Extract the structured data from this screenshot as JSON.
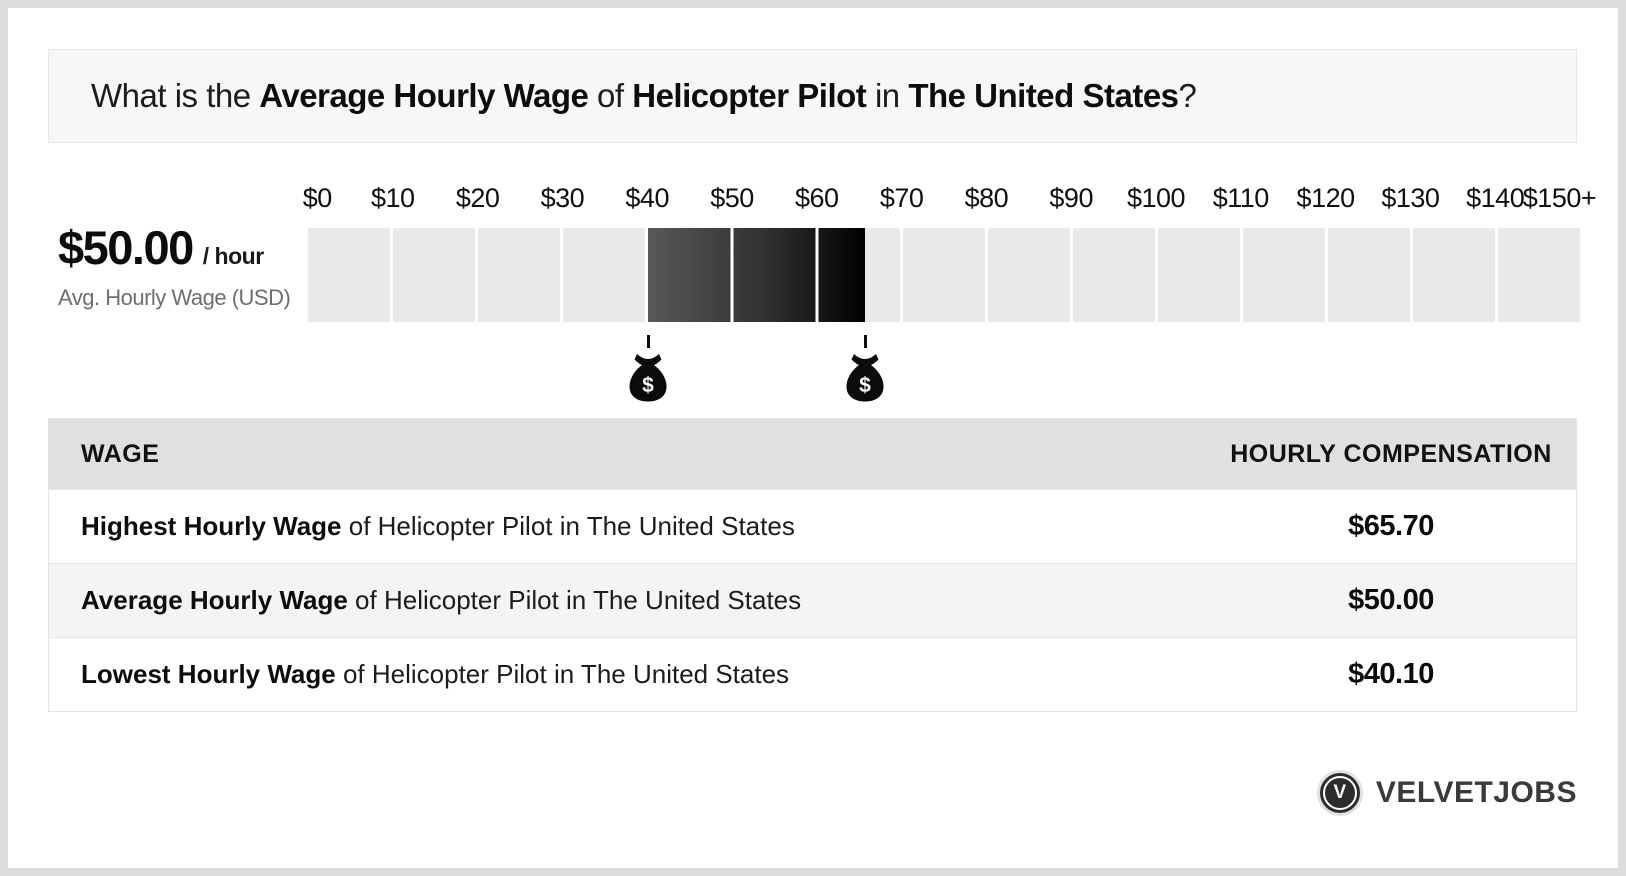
{
  "banner": {
    "title_parts": [
      {
        "text": "What is the ",
        "bold": false
      },
      {
        "text": "Average Hourly Wage",
        "bold": true
      },
      {
        "text": " of ",
        "bold": false
      },
      {
        "text": "Helicopter Pilot",
        "bold": true
      },
      {
        "text": " in ",
        "bold": false
      },
      {
        "text": "The United States",
        "bold": true
      },
      {
        "text": "?",
        "bold": false
      }
    ]
  },
  "summary": {
    "amount": "$50.00",
    "unit": "/ hour",
    "caption": "Avg. Hourly Wage (USD)"
  },
  "chart_data": {
    "type": "range-scale-bar",
    "title": "Hourly wage range of Helicopter Pilot in The United States",
    "axis_ticks": [
      "$0",
      "$10",
      "$20",
      "$30",
      "$40",
      "$50",
      "$60",
      "$70",
      "$80",
      "$90",
      "$100",
      "$110",
      "$120",
      "$130",
      "$140",
      "$150+"
    ],
    "axis_min": 0,
    "axis_max": 150,
    "segments": 15,
    "grid": false,
    "highlight": {
      "start": 40.1,
      "end": 65.7
    },
    "markers": [
      {
        "value": 40.1,
        "icon": "money-bag-icon",
        "label": "$"
      },
      {
        "value": 65.7,
        "icon": "money-bag-icon",
        "label": "$"
      }
    ],
    "average": 50.0,
    "colors": {
      "track": "#e9e9e9",
      "highlight_from": "#585858",
      "highlight_to": "#000000"
    }
  },
  "table": {
    "headers": [
      "WAGE",
      "HOURLY COMPENSATION"
    ],
    "rows": [
      {
        "label_bold": "Highest Hourly Wage",
        "label_rest": " of Helicopter Pilot in The United States",
        "value": "$65.70"
      },
      {
        "label_bold": "Average Hourly Wage",
        "label_rest": " of Helicopter Pilot in The United States",
        "value": "$50.00"
      },
      {
        "label_bold": "Lowest Hourly Wage",
        "label_rest": " of Helicopter Pilot in The United States",
        "value": "$40.10"
      }
    ]
  },
  "footer": {
    "brand": "VELVETJOBS",
    "logo_letter": "V"
  }
}
